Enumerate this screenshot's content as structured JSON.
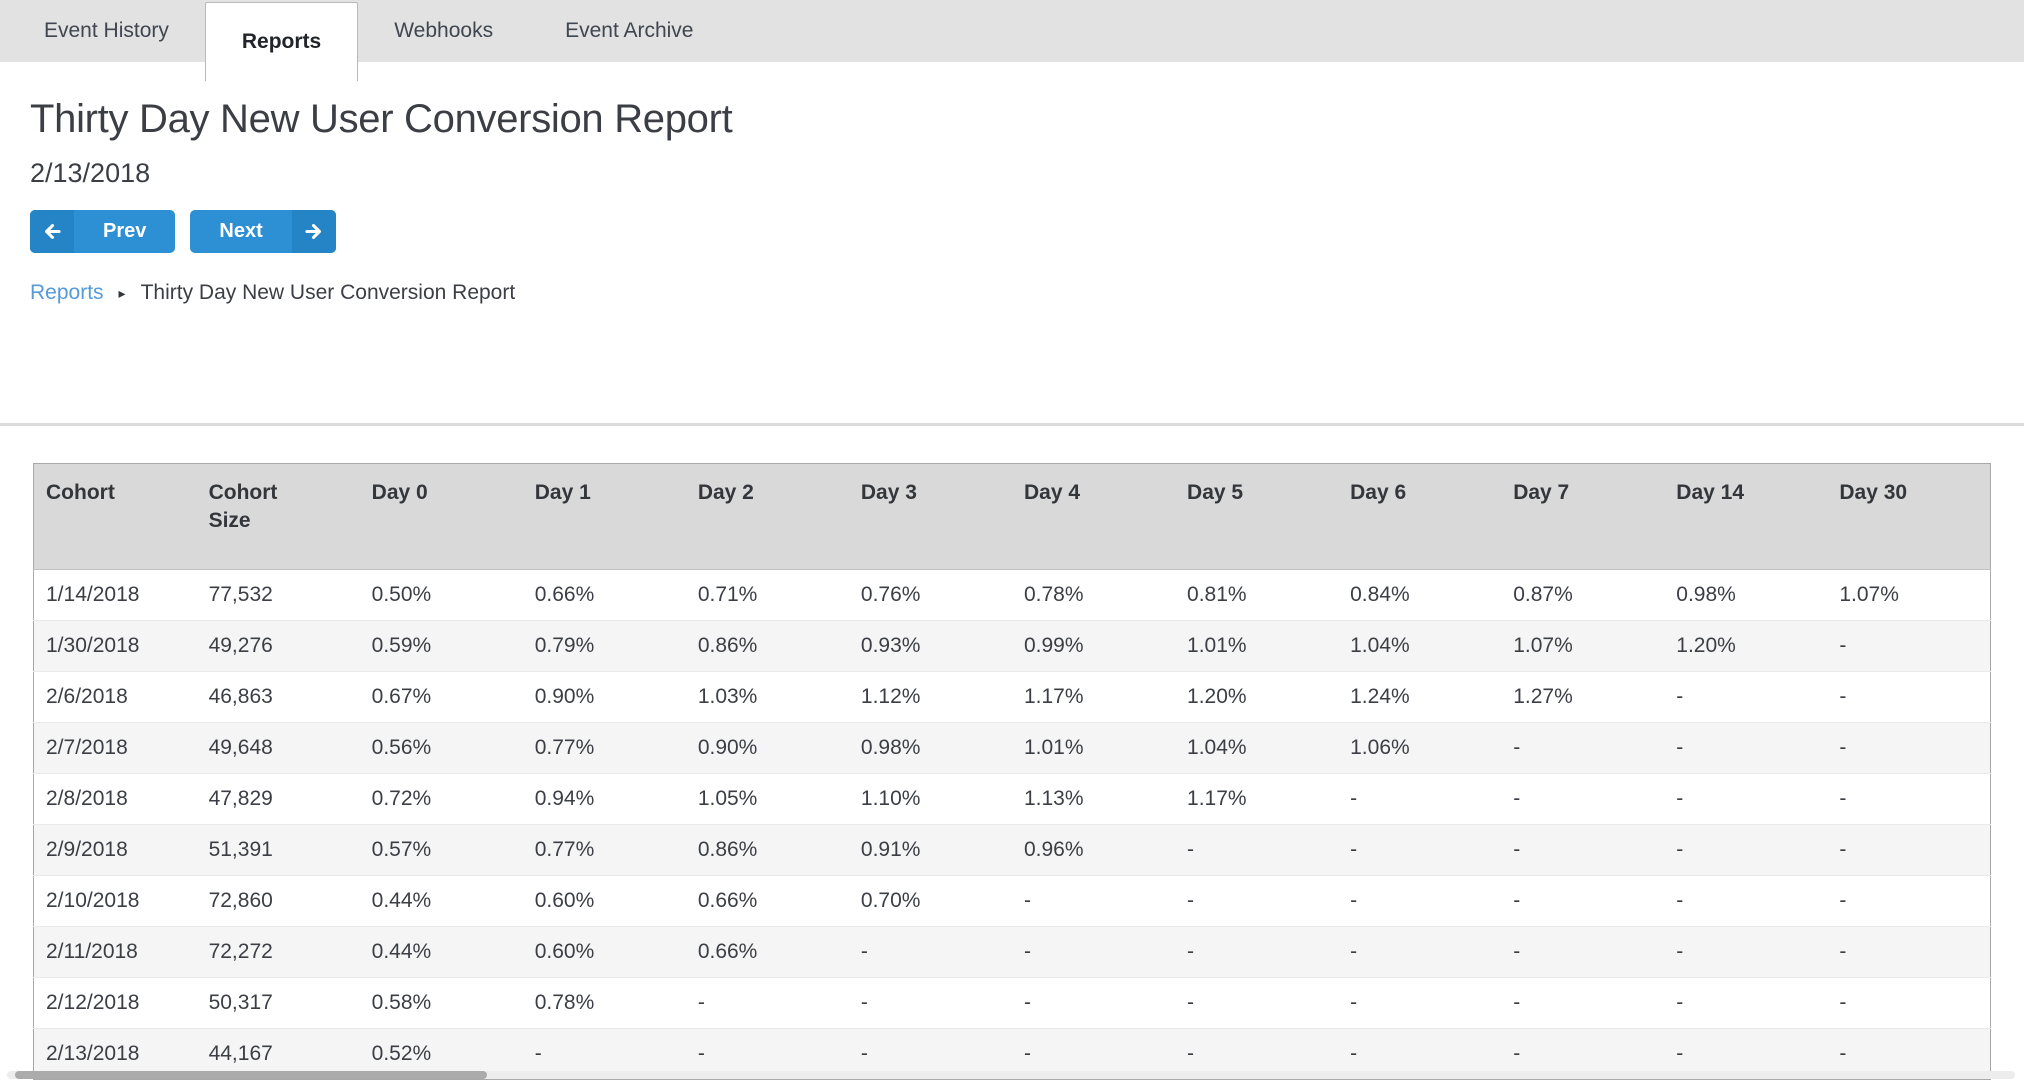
{
  "tabs": [
    {
      "label": "Event History",
      "active": false
    },
    {
      "label": "Reports",
      "active": true
    },
    {
      "label": "Webhooks",
      "active": false
    },
    {
      "label": "Event Archive",
      "active": false
    }
  ],
  "page": {
    "title": "Thirty Day New User Conversion Report",
    "date": "2/13/2018"
  },
  "buttons": {
    "prev_label": "Prev",
    "next_label": "Next",
    "prev_icon": "arrow-left-icon",
    "next_icon": "arrow-right-icon"
  },
  "breadcrumb": {
    "link": "Reports",
    "separator": "▸",
    "current": "Thirty Day New User Conversion Report"
  },
  "colors": {
    "accent_blue": "#2e90d4",
    "accent_blue_dark": "#2484c6",
    "link_blue": "#549bd8",
    "tab_bar_bg": "#e2e2e2",
    "table_header_bg": "#d9d9d9",
    "row_stripe": "#f5f5f5"
  },
  "table": {
    "columns": [
      "Cohort",
      "Cohort Size",
      "Day 0",
      "Day 1",
      "Day 2",
      "Day 3",
      "Day 4",
      "Day 5",
      "Day 6",
      "Day 7",
      "Day 14",
      "Day 30"
    ],
    "rows": [
      {
        "cohort": "1/14/2018",
        "size": "77,532",
        "values": [
          "0.50%",
          "0.66%",
          "0.71%",
          "0.76%",
          "0.78%",
          "0.81%",
          "0.84%",
          "0.87%",
          "0.98%",
          "1.07%"
        ]
      },
      {
        "cohort": "1/30/2018",
        "size": "49,276",
        "values": [
          "0.59%",
          "0.79%",
          "0.86%",
          "0.93%",
          "0.99%",
          "1.01%",
          "1.04%",
          "1.07%",
          "1.20%",
          "-"
        ]
      },
      {
        "cohort": "2/6/2018",
        "size": "46,863",
        "values": [
          "0.67%",
          "0.90%",
          "1.03%",
          "1.12%",
          "1.17%",
          "1.20%",
          "1.24%",
          "1.27%",
          "-",
          "-"
        ]
      },
      {
        "cohort": "2/7/2018",
        "size": "49,648",
        "values": [
          "0.56%",
          "0.77%",
          "0.90%",
          "0.98%",
          "1.01%",
          "1.04%",
          "1.06%",
          "-",
          "-",
          "-"
        ]
      },
      {
        "cohort": "2/8/2018",
        "size": "47,829",
        "values": [
          "0.72%",
          "0.94%",
          "1.05%",
          "1.10%",
          "1.13%",
          "1.17%",
          "-",
          "-",
          "-",
          "-"
        ]
      },
      {
        "cohort": "2/9/2018",
        "size": "51,391",
        "values": [
          "0.57%",
          "0.77%",
          "0.86%",
          "0.91%",
          "0.96%",
          "-",
          "-",
          "-",
          "-",
          "-"
        ]
      },
      {
        "cohort": "2/10/2018",
        "size": "72,860",
        "values": [
          "0.44%",
          "0.60%",
          "0.66%",
          "0.70%",
          "-",
          "-",
          "-",
          "-",
          "-",
          "-"
        ]
      },
      {
        "cohort": "2/11/2018",
        "size": "72,272",
        "values": [
          "0.44%",
          "0.60%",
          "0.66%",
          "-",
          "-",
          "-",
          "-",
          "-",
          "-",
          "-"
        ]
      },
      {
        "cohort": "2/12/2018",
        "size": "50,317",
        "values": [
          "0.58%",
          "0.78%",
          "-",
          "-",
          "-",
          "-",
          "-",
          "-",
          "-",
          "-"
        ]
      },
      {
        "cohort": "2/13/2018",
        "size": "44,167",
        "values": [
          "0.52%",
          "-",
          "-",
          "-",
          "-",
          "-",
          "-",
          "-",
          "-",
          "-"
        ]
      }
    ]
  }
}
